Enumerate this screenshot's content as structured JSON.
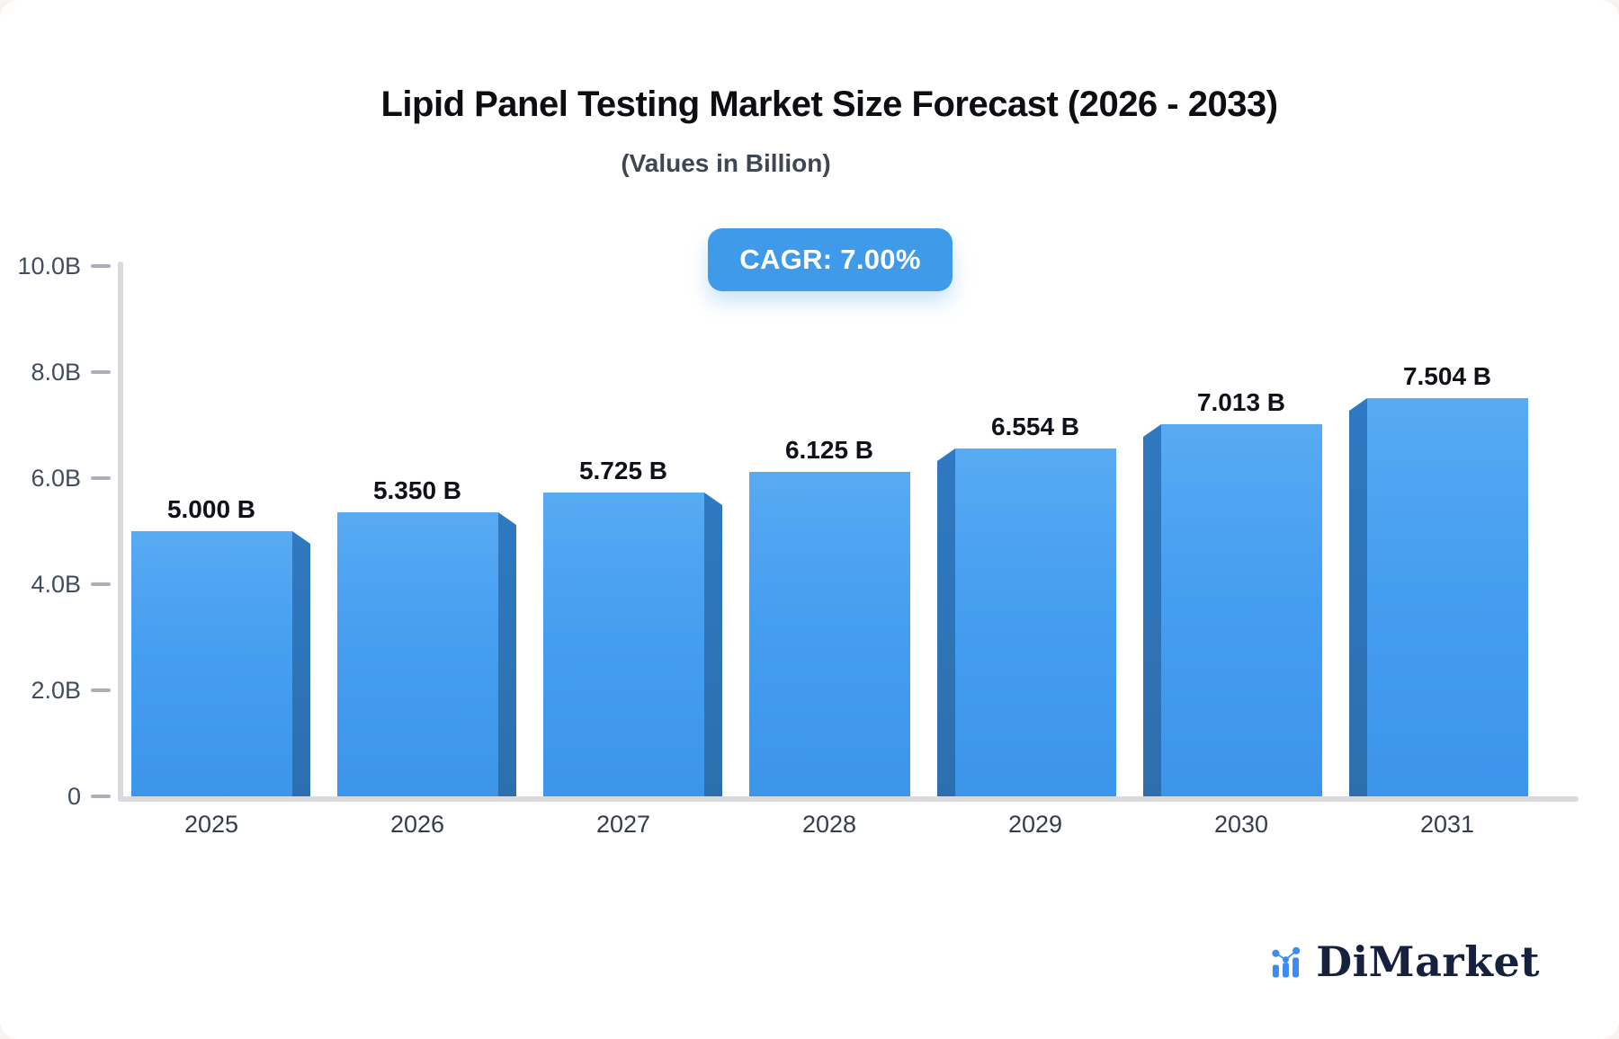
{
  "page": {
    "title": "Lipid Panel Testing Market Size Forecast (2026 - 2033)",
    "subtitle": "(Values in Billion)",
    "cagr_badge": "CAGR: 7.00%"
  },
  "brand": {
    "name": "DiMarket",
    "icon": "bar-chart-logo-icon"
  },
  "colors": {
    "bar_face_top": "#58aaf3",
    "bar_face_bottom": "#3c95ea",
    "bar_side": "#2e74b8",
    "badge_background": "#3f9bea",
    "badge_text": "#ffffff",
    "axis_line": "#d8dade",
    "tick_dash": "#abb0ba",
    "title_text": "#0d0e12",
    "subtitle_text": "#3e4553",
    "axis_label_text": "#434c5e",
    "value_label_text": "#0e1118",
    "logo_navy": "#16213d",
    "logo_blue": "#3d8bf2"
  },
  "chart_data": {
    "type": "bar",
    "title": "Lipid Panel Testing Market Size Forecast (2026 - 2033)",
    "subtitle": "(Values in Billion)",
    "annotation": "CAGR: 7.00%",
    "categories": [
      "2025",
      "2026",
      "2027",
      "2028",
      "2029",
      "2030",
      "2031"
    ],
    "values": [
      5.0,
      5.35,
      5.725,
      6.125,
      6.554,
      7.013,
      7.504
    ],
    "bar_labels": [
      "5.000 B",
      "5.350 B",
      "5.725 B",
      "6.125 B",
      "6.554 B",
      "7.013 B",
      "7.504 B"
    ],
    "yticks": [
      {
        "value": 0,
        "label": "0"
      },
      {
        "value": 2,
        "label": "2.0B"
      },
      {
        "value": 4,
        "label": "4.0B"
      },
      {
        "value": 6,
        "label": "6.0B"
      },
      {
        "value": 8,
        "label": "8.0B"
      },
      {
        "value": 10,
        "label": "10.0B"
      }
    ],
    "ylim": [
      0,
      10
    ],
    "xlabel": "",
    "ylabel": "",
    "grid": false,
    "legend": false,
    "style": "pseudo-3d-bars"
  }
}
